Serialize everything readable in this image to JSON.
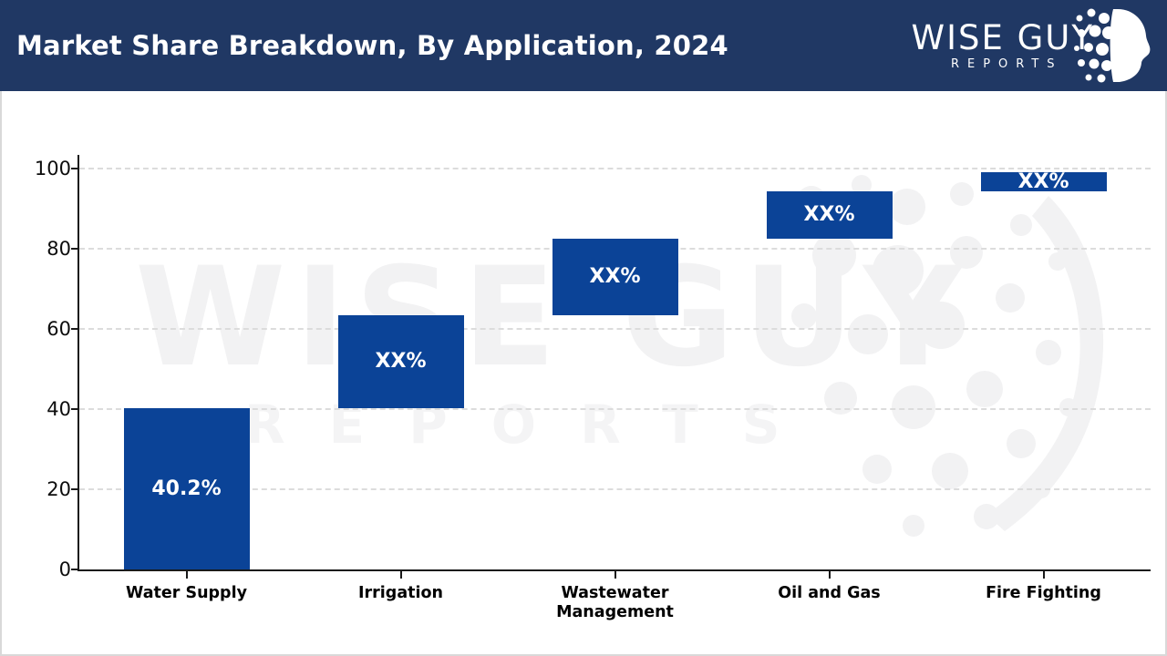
{
  "header": {
    "title": "Market Share Breakdown, By Application, 2024",
    "logo": {
      "line1": "WISE GUY",
      "line2": "REPORTS"
    }
  },
  "watermark": {
    "line1": "WISE GUY",
    "line2": "REPORTS"
  },
  "colors": {
    "header_bg": "#203864",
    "bar": "#0b4397",
    "grid": "#dcdcdc",
    "axis": "#1a1a1a",
    "bar_label": "#ffffff",
    "watermark": "#f2f2f3"
  },
  "chart_data": {
    "type": "bar",
    "subtype": "waterfall",
    "title": "Market Share Breakdown, By Application, 2024",
    "categories": [
      "Water Supply",
      "Irrigation",
      "Wastewater Management",
      "Oil and Gas",
      "Fire Fighting"
    ],
    "segments": [
      {
        "category": "Water Supply",
        "start": 0,
        "end": 40.2,
        "label": "40.2%"
      },
      {
        "category": "Irrigation",
        "start": 40.2,
        "end": 63.5,
        "label": "XX%"
      },
      {
        "category": "Wastewater Management",
        "start": 63.5,
        "end": 82.5,
        "label": "XX%"
      },
      {
        "category": "Oil and Gas",
        "start": 82.5,
        "end": 94.3,
        "label": "XX%"
      },
      {
        "category": "Fire Fighting",
        "start": 94.3,
        "end": 99,
        "label": "XX%"
      }
    ],
    "xlabel": "",
    "ylabel": "",
    "ylim": [
      0,
      100
    ],
    "yticks": [
      0,
      20,
      40,
      60,
      80,
      100
    ],
    "grid": "horizontal-dashed",
    "legend": "none"
  }
}
